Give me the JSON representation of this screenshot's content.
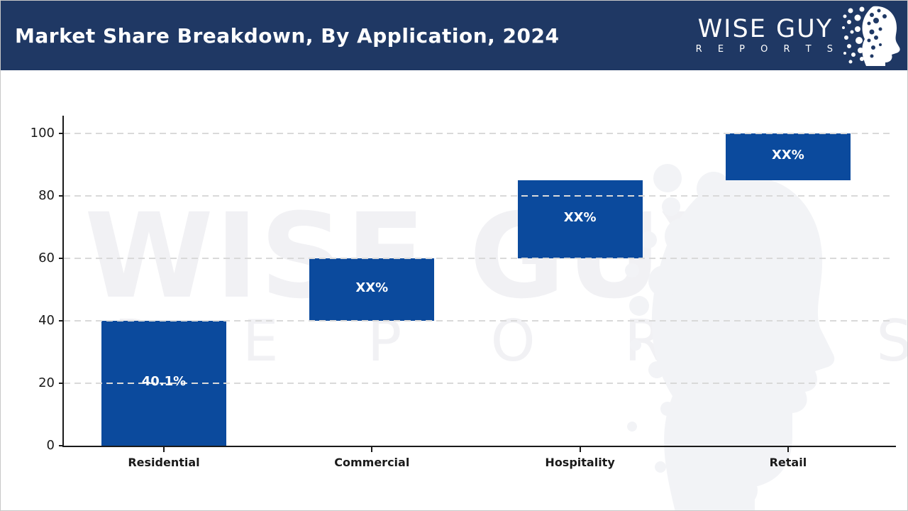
{
  "header": {
    "title": "Market Share Breakdown, By Application, 2024",
    "bg_color": "#1f3864",
    "logo": {
      "line1": "WISE GUY",
      "line2": "R E P O R T S",
      "face_icon": "dotted-head-profile-icon"
    }
  },
  "watermark": {
    "line1": "WISE GUY",
    "line2": "R E P O R T S",
    "face_icon": "dotted-head-profile-watermark",
    "color": "#f1f1f4"
  },
  "chart_data": {
    "type": "bar",
    "subtype": "waterfall",
    "title": "Market Share Breakdown, By Application, 2024",
    "categories": [
      "Residential",
      "Commercial",
      "Hospitality",
      "Retail"
    ],
    "segments": [
      {
        "category": "Residential",
        "start": 0,
        "end": 40.1,
        "label": "40.1%"
      },
      {
        "category": "Commercial",
        "start": 40.1,
        "end": 60.1,
        "label": "XX%"
      },
      {
        "category": "Hospitality",
        "start": 60.1,
        "end": 85.1,
        "label": "XX%"
      },
      {
        "category": "Retail",
        "start": 85.1,
        "end": 100,
        "label": "XX%"
      }
    ],
    "yticks": [
      0,
      20,
      40,
      60,
      80,
      100
    ],
    "ylim": [
      0,
      105
    ],
    "xlabel": "",
    "ylabel": "",
    "grid": "dashed horizontal, drawn above bars",
    "legend": "none",
    "bar_color": "#0b4a9d",
    "bar_label_color": "#ffffff",
    "axis_color": "#1a1a1a",
    "grid_color": "#d9d9d9"
  }
}
